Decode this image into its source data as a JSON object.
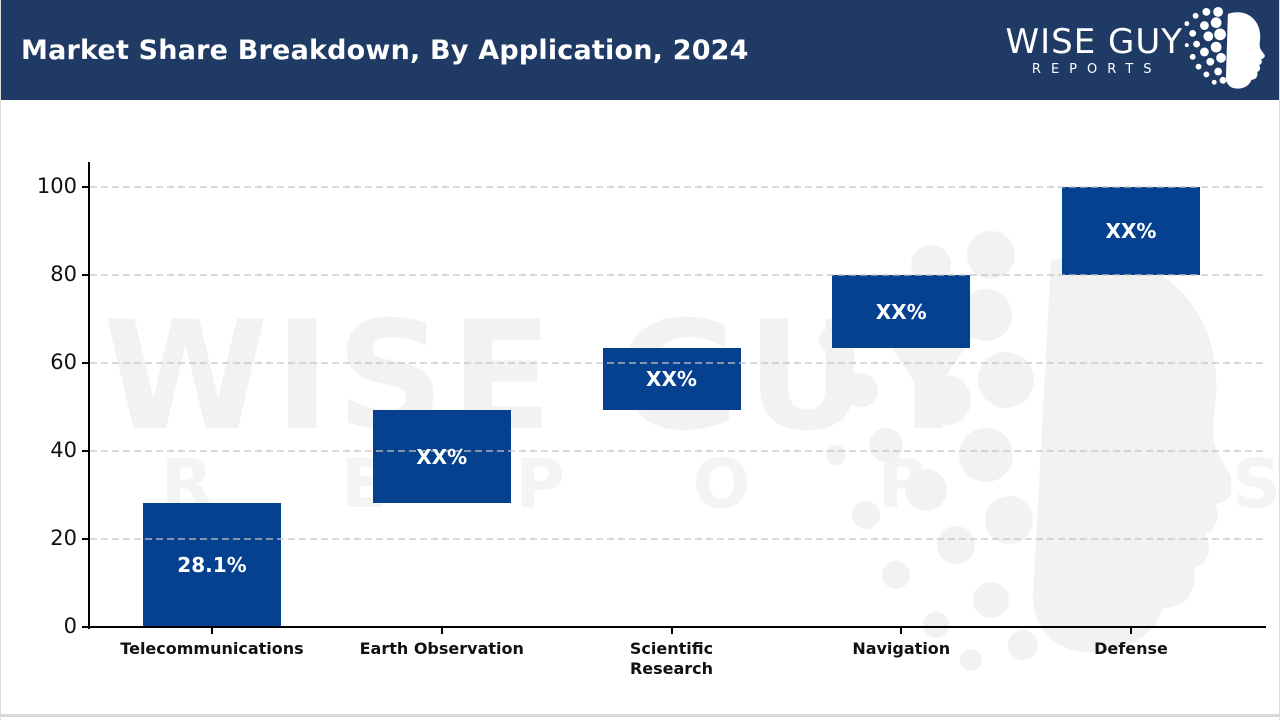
{
  "header": {
    "title": "Market Share Breakdown, By Application, 2024",
    "logo": {
      "line1": "WISE GUY",
      "line2": "REPORTS"
    }
  },
  "watermark": {
    "line1": "WISE GUY",
    "line2": "R E P O R T S"
  },
  "chart_data": {
    "type": "bar",
    "variant": "waterfall",
    "title": "Market Share Breakdown, By Application, 2024",
    "categories": [
      "Telecommunications",
      "Earth Observation",
      "Scientific\nResearch",
      "Navigation",
      "Defense"
    ],
    "segments": [
      {
        "category": "Telecommunications",
        "start": 0,
        "end": 28.1,
        "label": "28.1%"
      },
      {
        "category": "Earth Observation",
        "start": 28.1,
        "end": 49.4,
        "label": "XX%"
      },
      {
        "category": "Scientific Research",
        "start": 49.4,
        "end": 63.3,
        "label": "XX%"
      },
      {
        "category": "Navigation",
        "start": 63.3,
        "end": 80,
        "label": "XX%"
      },
      {
        "category": "Defense",
        "start": 80,
        "end": 100,
        "label": "XX%"
      }
    ],
    "ylim": [
      0,
      100
    ],
    "yticks": [
      0,
      20,
      40,
      60,
      80,
      100
    ],
    "grid": "dashed-horizontal",
    "legend": "none",
    "bar_color": "#05418f",
    "bar_label_color": "#ffffff",
    "axis_color": "#000000",
    "header_color": "#1f3a64"
  }
}
